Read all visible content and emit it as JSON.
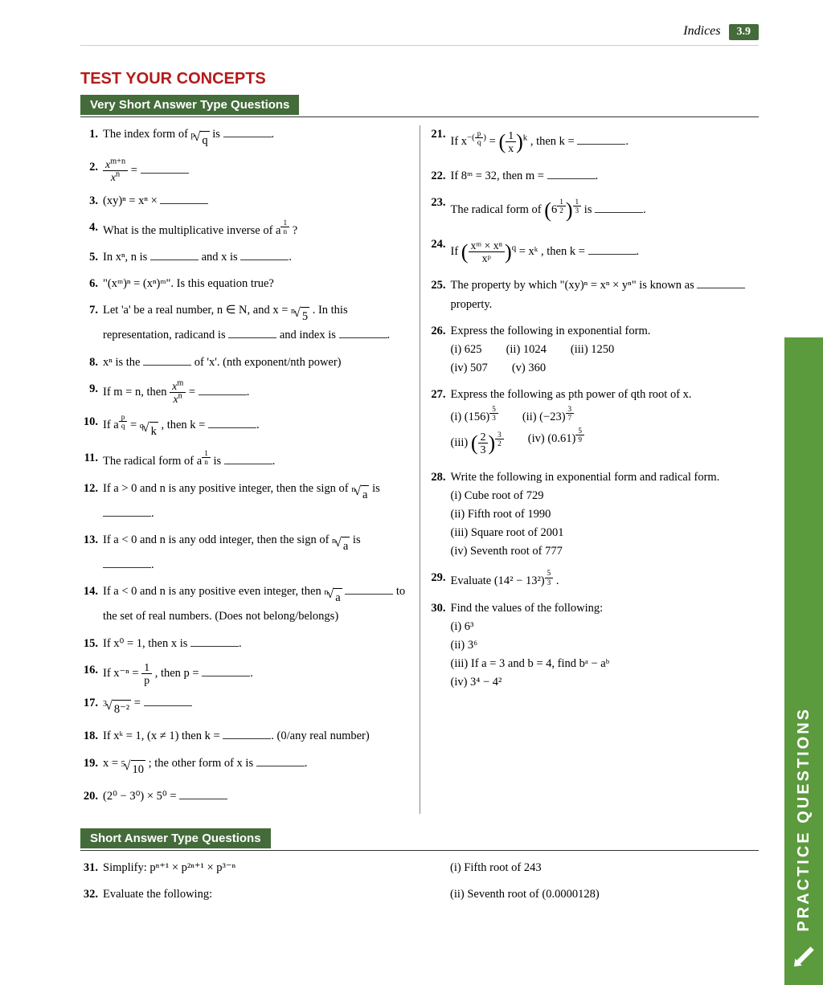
{
  "header": {
    "chapter_title": "Indices",
    "chapter_number": "3.9"
  },
  "colors": {
    "title_red": "#b51a1a",
    "header_green": "#446b3a",
    "side_green": "#5c9a3e",
    "text": "#222222"
  },
  "main_title": "TEST YOUR CONCEPTS",
  "section1": "Very Short Answer Type Questions",
  "section2": "Short Answer Type Questions",
  "side_label": "PRACTICE QUESTIONS",
  "q1": {
    "n": "1.",
    "pre": "The index form of ",
    "root_idx": "p",
    "root_rad": "q",
    "post": " is "
  },
  "q2": {
    "n": "2.",
    "num_exp": "m+n",
    "den_exp": "n",
    "eq": " = "
  },
  "q3": {
    "n": "3.",
    "t": "(xy)ⁿ = xⁿ × "
  },
  "q4": {
    "n": "4.",
    "t": "What is the multiplicative inverse of a",
    "exp_num": "1",
    "exp_den": "n",
    "post": " ?"
  },
  "q5": {
    "n": "5.",
    "t1": "In xⁿ, n is ",
    "t2": " and x is "
  },
  "q6": {
    "n": "6.",
    "t": "\"(xᵐ)ⁿ = (xⁿ)ᵐ\". Is this equation true?"
  },
  "q7": {
    "n": "7.",
    "t1": "Let 'a' be a real number, n ∈ N, and x = ",
    "root_idx": "n",
    "root_rad": "5",
    "t2": " . In this representation, radicand is ",
    "t3": " and index is "
  },
  "q8": {
    "n": "8.",
    "t1": "xⁿ is the ",
    "t2": " of 'x'. (nth exponent/nth power)"
  },
  "q9": {
    "n": "9.",
    "t1": "If m = n, then ",
    "num_exp": "m",
    "den_exp": "n",
    "t2": " = "
  },
  "q10": {
    "n": "10.",
    "t1": "If a",
    "exp_num": "p",
    "exp_den": "q",
    "t2": " = ",
    "root_idx": "q",
    "root_rad": "k",
    "t3": " , then k = "
  },
  "q11": {
    "n": "11.",
    "t1": "The radical form of a",
    "exp_num": "1",
    "exp_den": "n",
    "t2": " is "
  },
  "q12": {
    "n": "12.",
    "t1": "If a > 0 and n is any positive integer, then the sign of ",
    "root_idx": "n",
    "root_rad": "a",
    "t2": " is "
  },
  "q13": {
    "n": "13.",
    "t1": "If a < 0 and n is any odd integer, then the sign of ",
    "root_idx": "n",
    "root_rad": "a",
    "t2": " is "
  },
  "q14": {
    "n": "14.",
    "t1": "If a < 0 and n is any positive even integer, then ",
    "root_idx": "n",
    "root_rad": "a",
    "t2": " ",
    "t3": " to the set of real numbers. (Does not belong/belongs)"
  },
  "q15": {
    "n": "15.",
    "t1": "If x⁰ = 1, then x is "
  },
  "q16": {
    "n": "16.",
    "t1": "If x⁻ⁿ = ",
    "frac_num": "1",
    "frac_den": "p",
    "t2": " , then p = "
  },
  "q17": {
    "n": "17.",
    "root_idx": "3",
    "root_rad": "8⁻²",
    "t": " = "
  },
  "q18": {
    "n": "18.",
    "t1": "If xᵏ = 1, (x ≠ 1) then k = ",
    "t2": ". (0/any real number)"
  },
  "q19": {
    "n": "19.",
    "t1": "x = ",
    "root_idx": "5",
    "root_rad": "10",
    "t2": " ; the other form of x is "
  },
  "q20": {
    "n": "20.",
    "t": "(2⁰ − 3⁰) × 5⁰ = "
  },
  "q21": {
    "n": "21.",
    "t1": "If x",
    "exp1_pre": "−(",
    "exp1_num": "p",
    "exp1_den": "q",
    "exp1_post": ")",
    "t2": " = ",
    "b_num": "1",
    "b_den": "x",
    "b_exp": "k",
    "t3": " , then k = "
  },
  "q22": {
    "n": "22.",
    "t1": "If 8ᵐ = 32, then m = "
  },
  "q23": {
    "n": "23.",
    "t1": "The radical form of ",
    "base": "6",
    "be_num": "1",
    "be_den": "2",
    "oe_num": "1",
    "oe_den": "3",
    "t2": " is "
  },
  "q24": {
    "n": "24.",
    "t1": "If ",
    "num": "xᵐ × xⁿ",
    "den": "xᵖ",
    "exp": "q",
    "t2": " = xᵏ , then k = "
  },
  "q25": {
    "n": "25.",
    "t1": "The property by which \"(xy)ⁿ = xⁿ × yⁿ\" is known as ",
    "t2": " property."
  },
  "q26": {
    "n": "26.",
    "t": "Express the following in exponential form.",
    "i": "(i) 625",
    "ii": "(ii) 1024",
    "iii": "(iii) 1250",
    "iv": "(iv) 507",
    "v": "(v) 360"
  },
  "q27": {
    "n": "27.",
    "t": "Express the following as pth power of qth root of x.",
    "i_pre": "(i) (156)",
    "i_num": "5",
    "i_den": "3",
    "ii_pre": "(ii) (−23)",
    "ii_num": "3",
    "ii_den": "7",
    "iii_pre": "(iii) ",
    "iii_b_num": "2",
    "iii_b_den": "3",
    "iii_e_num": "3",
    "iii_e_den": "2",
    "iv_pre": "(iv) (0.61)",
    "iv_num": "5",
    "iv_den": "9"
  },
  "q28": {
    "n": "28.",
    "t": "Write the following in exponential form and radical form.",
    "i": "(i) Cube root of 729",
    "ii": "(ii) Fifth root of 1990",
    "iii": "(iii) Square root of 2001",
    "iv": "(iv) Seventh root of 777"
  },
  "q29": {
    "n": "29.",
    "t1": "Evaluate (14² − 13²)",
    "e_num": "5",
    "e_den": "3",
    "t2": " ."
  },
  "q30": {
    "n": "30.",
    "t": "Find the values of the following:",
    "i": "(i) 6³",
    "ii": "(ii) 3⁶",
    "iii": "(iii) If a = 3 and b = 4, find bᵃ − aᵇ",
    "iv": "(iv) 3⁴ − 4²"
  },
  "q31": {
    "n": "31.",
    "t": "Simplify: pⁿ⁺¹ × p²ⁿ⁺¹ × p³⁻ⁿ"
  },
  "q32": {
    "n": "32.",
    "t": "Evaluate the following:",
    "i": "(i) Fifth root of 243",
    "ii": "(ii) Seventh root of (0.0000128)"
  }
}
